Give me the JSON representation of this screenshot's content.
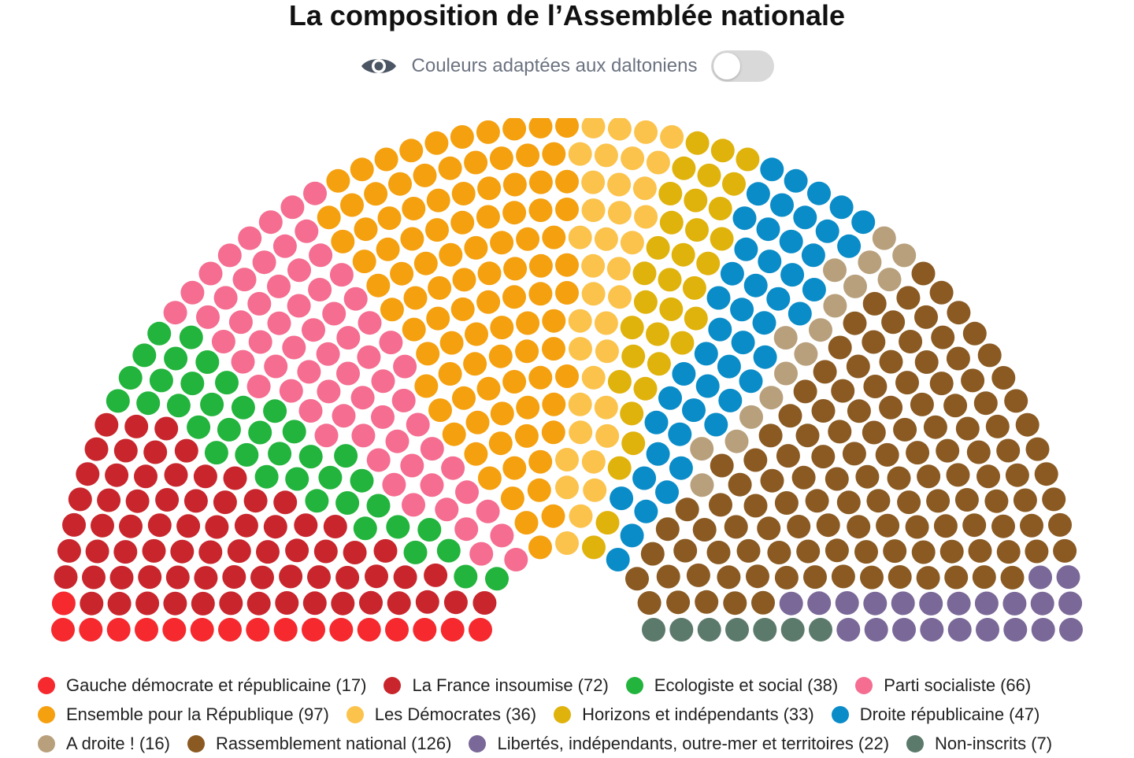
{
  "header": {
    "title": "La composition de l’Assemblée nationale",
    "colorblind_label": "Couleurs adaptées aux daltoniens",
    "colorblind_enabled": false
  },
  "chart_data": {
    "type": "parliament",
    "title": "La composition de l’Assemblée nationale",
    "total_seats": 577,
    "legend_placement": "bottom",
    "series": [
      {
        "name": "Gauche démocrate et républicaine",
        "count_label": "(17)",
        "value": 17,
        "color": "#f5292e"
      },
      {
        "name": "La France insoumise",
        "count_label": "(72)",
        "value": 72,
        "color": "#c8262c"
      },
      {
        "name": "Ecologiste et social",
        "count_label": "(38)",
        "value": 38,
        "color": "#22b43c"
      },
      {
        "name": "Parti socialiste",
        "count_label": "(66)",
        "value": 66,
        "color": "#f56d90"
      },
      {
        "name": "Ensemble pour la République",
        "count_label": "(97)",
        "value": 97,
        "color": "#f5a00f"
      },
      {
        "name": "Les Démocrates",
        "count_label": "(36)",
        "value": 36,
        "color": "#fbc34c"
      },
      {
        "name": "Horizons et indépendants",
        "count_label": "(33)",
        "value": 33,
        "color": "#e0b20c"
      },
      {
        "name": "Droite républicaine",
        "count_label": "(47)",
        "value": 47,
        "color": "#0a8cc8"
      },
      {
        "name": "A droite !",
        "count_label": "(16)",
        "value": 16,
        "color": "#b8a07c"
      },
      {
        "name": "Rassemblement national",
        "count_label": "(126)",
        "value": 126,
        "color": "#8a5a22"
      },
      {
        "name": "Libertés, indépendants, outre-mer et territoires",
        "count_label": "(22)",
        "value": 22,
        "color": "#7a6898"
      },
      {
        "name": "Non-inscrits",
        "count_label": "(7)",
        "value": 7,
        "color": "#5c7a6c"
      }
    ],
    "legend_rows": [
      [
        0,
        1,
        2,
        3
      ],
      [
        4,
        5,
        6,
        7
      ],
      [
        8,
        9,
        10,
        11
      ]
    ]
  },
  "colors": {
    "eye_icon": "#4b5563",
    "switch_off": "#d9d9d9",
    "text_muted": "#6b7280"
  }
}
